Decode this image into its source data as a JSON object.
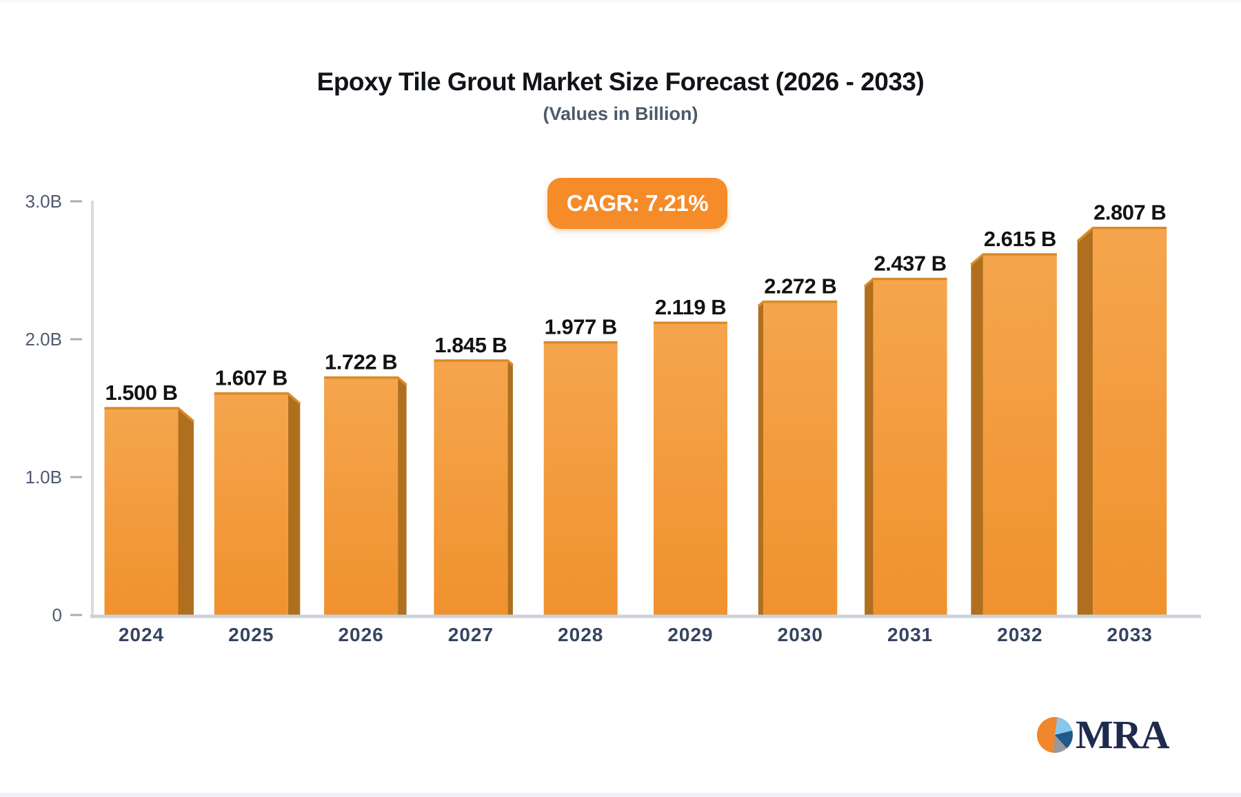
{
  "header": {
    "title": "Epoxy Tile Grout Market Size Forecast (2026 - 2033)",
    "subtitle": "(Values in Billion)",
    "cagr_badge": "CAGR: 7.21%"
  },
  "chart_data": {
    "type": "bar",
    "title": "Epoxy Tile Grout Market Size Forecast (2026 - 2033)",
    "subtitle": "(Values in Billion)",
    "annotation": "CAGR: 7.21%",
    "cagr_percent": 7.21,
    "unit": "Billion",
    "categories": [
      "2024",
      "2025",
      "2026",
      "2027",
      "2028",
      "2029",
      "2030",
      "2031",
      "2032",
      "2033"
    ],
    "values": [
      1.5,
      1.607,
      1.722,
      1.845,
      1.977,
      2.119,
      2.272,
      2.437,
      2.615,
      2.807
    ],
    "value_labels": [
      "1.500 B",
      "1.607 B",
      "1.722 B",
      "1.845 B",
      "1.977 B",
      "2.119 B",
      "2.272 B",
      "2.437 B",
      "2.615 B",
      "2.807 B"
    ],
    "y_ticks": [
      {
        "value": 0,
        "label": "0"
      },
      {
        "value": 1,
        "label": "1.0B"
      },
      {
        "value": 2,
        "label": "2.0B"
      },
      {
        "value": 3,
        "label": "3.0B"
      }
    ],
    "ylim": [
      0,
      3
    ],
    "grid": false,
    "legend": false,
    "colors": {
      "bar_front_top": "#F5A54D",
      "bar_front_bottom": "#F0922E",
      "bar_side": "#B06F1E",
      "bar_top_edge": "#DC8A26",
      "axis_line": "#D8DBE0",
      "baseline": "#CDD2DA",
      "tick_dash": "#A6ACB8",
      "tick_label": "#4D5A70",
      "category_label": "#364460",
      "value_label": "#121212",
      "badge_bg": "#F68B29"
    }
  },
  "branding": {
    "logo_text": "MRA",
    "logo_pie_colors": [
      "#F0872B",
      "#87C7EA",
      "#1E5A8A",
      "#97999D"
    ]
  }
}
